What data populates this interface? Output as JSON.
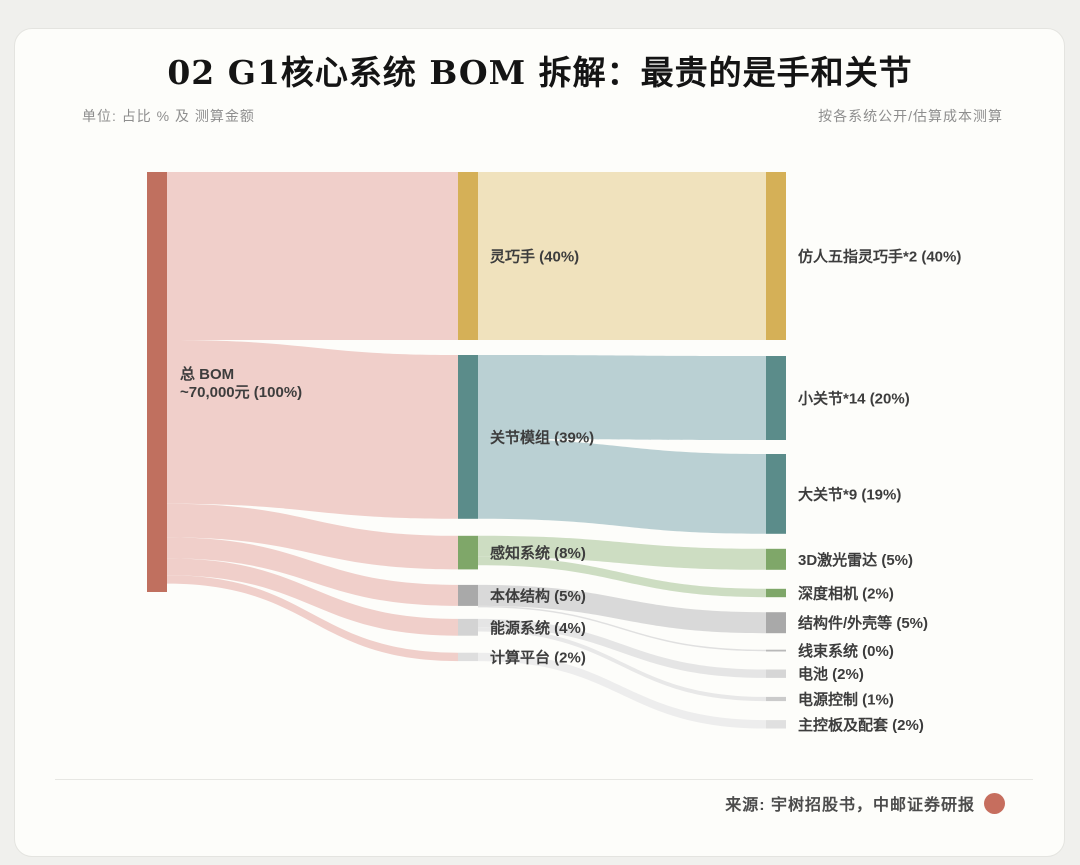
{
  "page": {
    "title": "02 G1核心系统 BOM 拆解：最贵的是手和关节",
    "subtitle_left": "单位: 占比 % 及 测算金额",
    "subtitle_right": "按各系统公开/估算成本测算",
    "footer_source": "来源: 宇树招股书，中邮证券研报"
  },
  "colors": {
    "page_background": "#f0f0ed",
    "card_background": "#fdfdfa",
    "accent_terracotta": "#c66e5e",
    "gold": "#d5b057",
    "teal": "#5b8c8a",
    "green": "#7fa769",
    "gray": "#a9a9a9",
    "label_text": "#3d3d3d"
  },
  "chart_data": {
    "type": "sankey",
    "title": "G1 core system BOM breakdown",
    "unit": "percent of total BOM (~70,000元)",
    "legend_position": "none",
    "grid": false,
    "nodes": [
      {
        "id": "total-bom",
        "level": 0,
        "value": 100,
        "label_lines": [
          "总 BOM",
          "~70,000元 (100%)"
        ],
        "color": "#c0705f"
      },
      {
        "id": "dexterous-hand",
        "level": 1,
        "value": 40,
        "label": "灵巧手 (40%)",
        "color": "#d5b057"
      },
      {
        "id": "joint-module",
        "level": 1,
        "value": 39,
        "label": "关节模组 (39%)",
        "color": "#5b8c8a"
      },
      {
        "id": "perception-system",
        "level": 1,
        "value": 8,
        "label": "感知系统 (8%)",
        "color": "#7fa769"
      },
      {
        "id": "body-structure",
        "level": 1,
        "value": 5,
        "label": "本体结构 (5%)",
        "color": "#a9a9a9"
      },
      {
        "id": "power-system",
        "level": 1,
        "value": 4,
        "label": "能源系统 (4%)",
        "color": "#d3d3d3"
      },
      {
        "id": "computing-platform",
        "level": 1,
        "value": 2,
        "label": "计算平台 (2%)",
        "color": "#dedede"
      },
      {
        "id": "humanoid-five-finger-hand",
        "level": 2,
        "value": 40,
        "label": "仿人五指灵巧手*2 (40%)",
        "color": "#d5b057"
      },
      {
        "id": "small-joint",
        "level": 2,
        "value": 20,
        "label": "小关节*14 (20%)",
        "color": "#5b8c8a"
      },
      {
        "id": "large-joint",
        "level": 2,
        "value": 19,
        "label": "大关节*9 (19%)",
        "color": "#5b8c8a"
      },
      {
        "id": "3d-lidar",
        "level": 2,
        "value": 5,
        "label": "3D激光雷达 (5%)",
        "color": "#7fa769"
      },
      {
        "id": "depth-camera",
        "level": 2,
        "value": 2,
        "label": "深度相机 (2%)",
        "color": "#7fa769"
      },
      {
        "id": "structural-parts-shell",
        "level": 2,
        "value": 5,
        "label": "结构件/外壳等 (5%)",
        "color": "#a9a9a9"
      },
      {
        "id": "wiring-harness",
        "level": 2,
        "value": 0,
        "label": "线束系统 (0%)",
        "color": "#b9b9b9"
      },
      {
        "id": "battery",
        "level": 2,
        "value": 2,
        "label": "电池 (2%)",
        "color": "#d6d6d6"
      },
      {
        "id": "power-control",
        "level": 2,
        "value": 1,
        "label": "电源控制 (1%)",
        "color": "#cbcbcb"
      },
      {
        "id": "mainboard-and-accessories",
        "level": 2,
        "value": 2,
        "label": "主控板及配套 (2%)",
        "color": "#e0e0e0"
      }
    ],
    "links": [
      {
        "source": "total-bom",
        "target": "dexterous-hand",
        "value": 40,
        "color": "#f0cfca"
      },
      {
        "source": "total-bom",
        "target": "joint-module",
        "value": 39,
        "color": "#f0cfca"
      },
      {
        "source": "total-bom",
        "target": "perception-system",
        "value": 8,
        "color": "#f0cfca"
      },
      {
        "source": "total-bom",
        "target": "body-structure",
        "value": 5,
        "color": "#f0cfca"
      },
      {
        "source": "total-bom",
        "target": "power-system",
        "value": 4,
        "color": "#f0cfca"
      },
      {
        "source": "total-bom",
        "target": "computing-platform",
        "value": 2,
        "color": "#f0cfca"
      },
      {
        "source": "dexterous-hand",
        "target": "humanoid-five-finger-hand",
        "value": 40,
        "color": "#f0e2bd"
      },
      {
        "source": "joint-module",
        "target": "small-joint",
        "value": 20,
        "color": "#bad0d3"
      },
      {
        "source": "joint-module",
        "target": "large-joint",
        "value": 19,
        "color": "#bad0d3"
      },
      {
        "source": "perception-system",
        "target": "3d-lidar",
        "value": 5,
        "color": "#cdddc2"
      },
      {
        "source": "perception-system",
        "target": "depth-camera",
        "value": 2,
        "color": "#cdddc2"
      },
      {
        "source": "body-structure",
        "target": "structural-parts-shell",
        "value": 5,
        "color": "#d9d9d9"
      },
      {
        "source": "body-structure",
        "target": "wiring-harness",
        "value": 0,
        "color": "#e0e0e0"
      },
      {
        "source": "power-system",
        "target": "battery",
        "value": 2,
        "color": "#e5e5e5"
      },
      {
        "source": "power-system",
        "target": "power-control",
        "value": 1,
        "color": "#e8e8e8"
      },
      {
        "source": "computing-platform",
        "target": "mainboard-and-accessories",
        "value": 2,
        "color": "#ededed"
      }
    ]
  }
}
